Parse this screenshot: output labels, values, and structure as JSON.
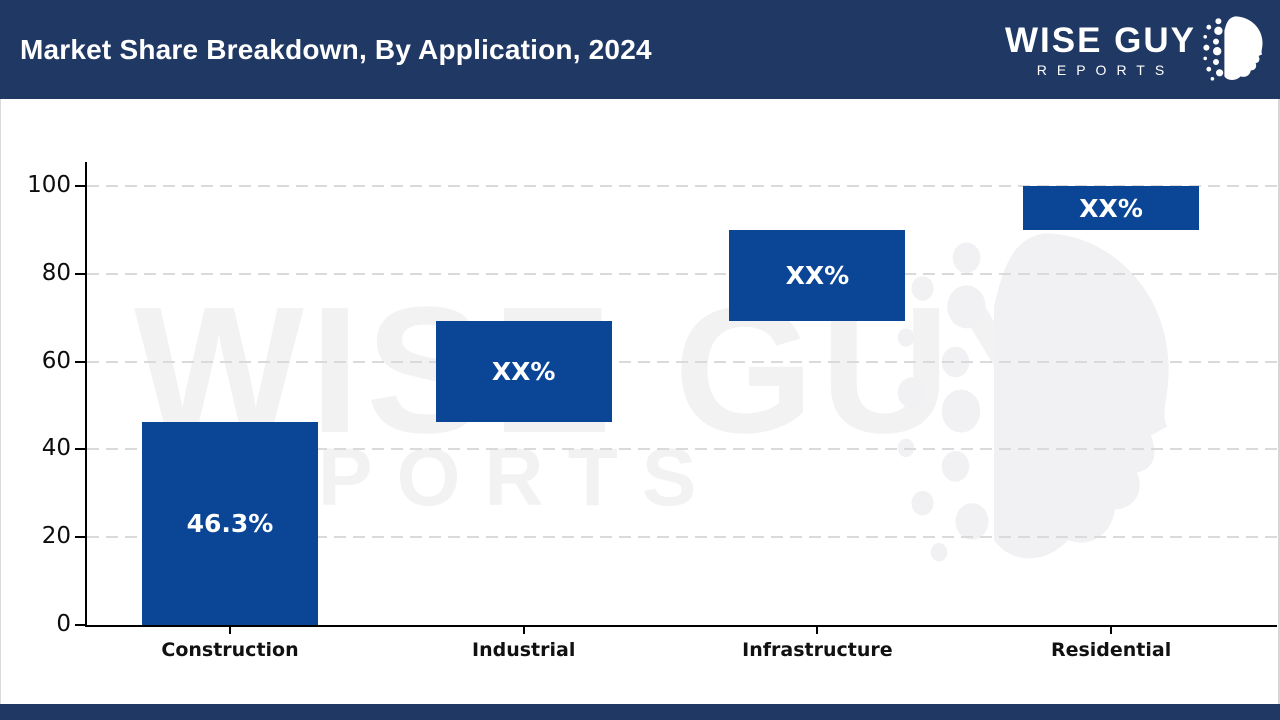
{
  "header": {
    "title": "Market Share Breakdown, By Application, 2024",
    "logo": {
      "line1": "WISE GUY",
      "line2": "REPORTS"
    }
  },
  "watermark": {
    "line1": "WISE GUY",
    "line2": "REPORTS"
  },
  "colors": {
    "header_navy": "#203864",
    "bar_blue": "#0b4596",
    "grid_gray": "#dadada",
    "axis_black": "#000000",
    "watermark_gray": "#f2f2f3",
    "value_label_white": "#ffffff"
  },
  "chart_data": {
    "type": "bar",
    "subtype": "floating-waterfall",
    "title": "Market Share Breakdown, By Application, 2024",
    "categories": [
      "Construction",
      "Industrial",
      "Infrastructure",
      "Residential"
    ],
    "segments": [
      {
        "category": "Construction",
        "start": 0,
        "end": 46.3,
        "label": "46.3%"
      },
      {
        "category": "Industrial",
        "start": 46.3,
        "end": 69.3,
        "label": "XX%"
      },
      {
        "category": "Infrastructure",
        "start": 69.3,
        "end": 90.0,
        "label": "XX%"
      },
      {
        "category": "Residential",
        "start": 90.0,
        "end": 100.0,
        "label": "XX%"
      }
    ],
    "yticks": [
      0,
      20,
      40,
      60,
      80,
      100
    ],
    "ylim": [
      0,
      105.5
    ],
    "xlabel": "",
    "ylabel": "",
    "grid": "horizontal-dashed",
    "legend": "none"
  }
}
